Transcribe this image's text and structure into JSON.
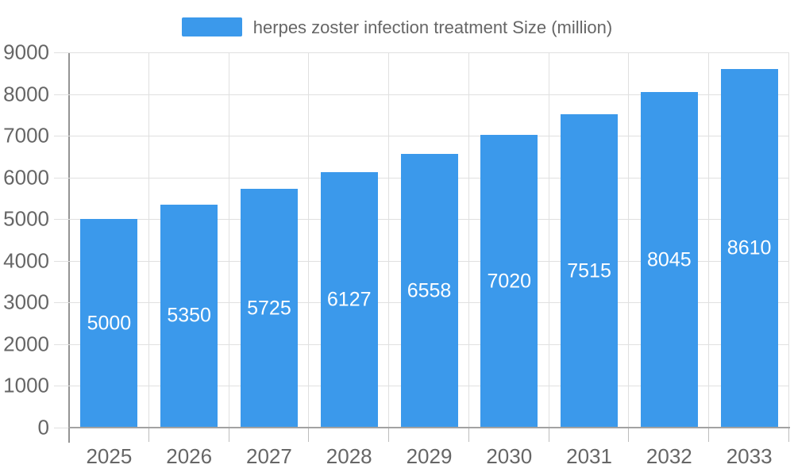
{
  "legend": {
    "label": "herpes zoster infection treatment Size (million)"
  },
  "colors": {
    "bar": "#3B99EB",
    "bar_label_text": "#ffffff",
    "grid_line": "#e0e0e0",
    "axis_line": "#999999",
    "axis_label_text": "#666666",
    "background": "#ffffff"
  },
  "chart_data": {
    "type": "bar",
    "title": "",
    "series_name": "herpes zoster infection treatment Size (million)",
    "categories": [
      "2025",
      "2026",
      "2027",
      "2028",
      "2029",
      "2030",
      "2031",
      "2032",
      "2033"
    ],
    "values": [
      5000,
      5350,
      5725,
      6127,
      6558,
      7020,
      7515,
      8045,
      8610
    ],
    "xlabel": "",
    "ylabel": "",
    "ylim": [
      0,
      9000
    ],
    "ytick_step": 1000,
    "yticks": [
      0,
      1000,
      2000,
      3000,
      4000,
      5000,
      6000,
      7000,
      8000,
      9000
    ],
    "grid": true,
    "legend_position": "top-center",
    "value_labels_position": "inside-center"
  }
}
